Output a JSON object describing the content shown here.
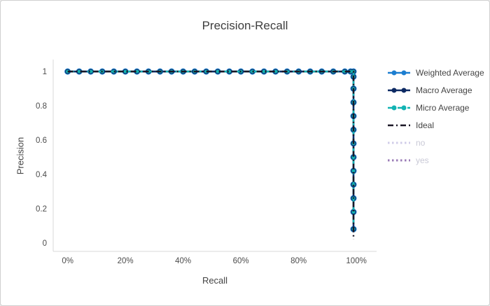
{
  "chart_data": {
    "type": "line",
    "title": "Precision-Recall",
    "xlabel": "Recall",
    "ylabel": "Precision",
    "xlim": [
      -5,
      107
    ],
    "ylim": [
      -0.05,
      1.07
    ],
    "grid": false,
    "legend_position": "right",
    "axis_color": "#d9d9d9",
    "tick_color": "#4c4c4c",
    "x_ticks": {
      "values": [
        0,
        20,
        40,
        60,
        80,
        100
      ],
      "labels": [
        "0%",
        "20%",
        "40%",
        "60%",
        "80%",
        "100%"
      ]
    },
    "y_ticks": {
      "values": [
        0,
        0.2,
        0.4,
        0.6,
        0.8,
        1
      ],
      "labels": [
        "0",
        "0.2",
        "0.4",
        "0.6",
        "0.8",
        "1"
      ]
    },
    "series": [
      {
        "name": "Weighted Average",
        "color": "#1c7ed0",
        "dash": "solid",
        "markers": true,
        "marker_r": 4.5,
        "x": [
          0,
          4,
          8,
          12,
          16,
          20,
          24,
          28,
          32,
          36,
          40,
          44,
          48,
          52,
          56,
          60,
          64,
          68,
          72,
          76,
          80,
          84,
          88,
          92,
          96,
          98,
          99,
          99,
          99,
          99,
          99,
          99,
          99,
          99,
          99,
          99,
          99,
          99,
          99
        ],
        "y": [
          1,
          1,
          1,
          1,
          1,
          1,
          1,
          1,
          1,
          1,
          1,
          1,
          1,
          1,
          1,
          1,
          1,
          1,
          1,
          1,
          1,
          1,
          1,
          1,
          1,
          1,
          1,
          0.97,
          0.9,
          0.82,
          0.74,
          0.66,
          0.58,
          0.5,
          0.42,
          0.34,
          0.26,
          0.18,
          0.08
        ]
      },
      {
        "name": "Macro Average",
        "color": "#0d2a63",
        "dash": "solid",
        "markers": true,
        "marker_r": 3.5,
        "x": [
          0,
          4,
          8,
          12,
          16,
          20,
          24,
          28,
          32,
          36,
          40,
          44,
          48,
          52,
          56,
          60,
          64,
          68,
          72,
          76,
          80,
          84,
          88,
          92,
          96,
          98,
          99,
          99,
          99,
          99,
          99,
          99,
          99,
          99,
          99,
          99,
          99,
          99,
          99
        ],
        "y": [
          1,
          1,
          1,
          1,
          1,
          1,
          1,
          1,
          1,
          1,
          1,
          1,
          1,
          1,
          1,
          1,
          1,
          1,
          1,
          1,
          1,
          1,
          1,
          1,
          1,
          1,
          1,
          0.97,
          0.9,
          0.82,
          0.74,
          0.66,
          0.58,
          0.5,
          0.42,
          0.34,
          0.26,
          0.18,
          0.08
        ]
      },
      {
        "name": "Micro Average",
        "color": "#13b3b3",
        "dash": "dash",
        "markers": true,
        "marker_r": 2.5,
        "x": [
          0,
          4,
          8,
          12,
          16,
          20,
          24,
          28,
          32,
          36,
          40,
          44,
          48,
          52,
          56,
          60,
          64,
          68,
          72,
          76,
          80,
          84,
          88,
          92,
          96,
          98,
          99,
          99,
          99,
          99,
          99,
          99,
          99,
          99,
          99,
          99,
          99,
          99,
          99
        ],
        "y": [
          1,
          1,
          1,
          1,
          1,
          1,
          1,
          1,
          1,
          1,
          1,
          1,
          1,
          1,
          1,
          1,
          1,
          1,
          1,
          1,
          1,
          1,
          1,
          1,
          1,
          1,
          1,
          0.97,
          0.9,
          0.82,
          0.74,
          0.66,
          0.58,
          0.5,
          0.42,
          0.34,
          0.26,
          0.18,
          0.08
        ]
      },
      {
        "name": "Ideal",
        "color": "#1a1726",
        "dash": "dashdot",
        "markers": false,
        "marker_r": 0,
        "x": [
          0,
          99,
          99
        ],
        "y": [
          1,
          1,
          0.02
        ]
      }
    ],
    "legend": [
      {
        "name": "Weighted Average",
        "color": "#1c7ed0",
        "dash": "solid",
        "markers": true,
        "enabled": true
      },
      {
        "name": "Macro Average",
        "color": "#0d2a63",
        "dash": "solid",
        "markers": true,
        "enabled": true
      },
      {
        "name": "Micro Average",
        "color": "#13b3b3",
        "dash": "dash",
        "markers": true,
        "enabled": true
      },
      {
        "name": "Ideal",
        "color": "#1a1726",
        "dash": "dashdot",
        "markers": false,
        "enabled": true
      },
      {
        "name": "no",
        "color": "#c8c4e4",
        "dash": "dot",
        "markers": false,
        "enabled": false
      },
      {
        "name": "yes",
        "color": "#8a66ab",
        "dash": "dot",
        "markers": false,
        "enabled": false
      }
    ]
  }
}
